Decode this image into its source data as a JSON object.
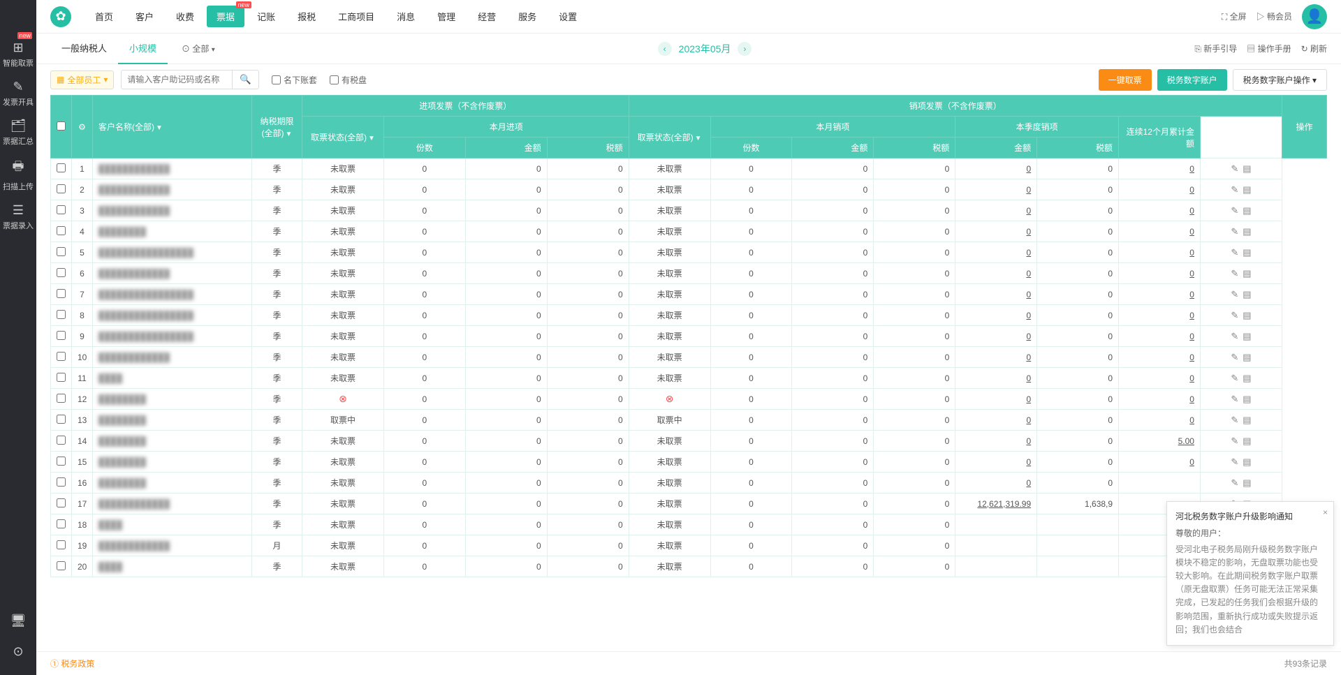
{
  "sidebar": {
    "items": [
      {
        "label": "智能取票",
        "icon": "⊞",
        "new": true
      },
      {
        "label": "发票开具",
        "icon": "✎"
      },
      {
        "label": "票据汇总",
        "icon": "🗂"
      },
      {
        "label": "扫描上传",
        "icon": "🖶"
      },
      {
        "label": "票据录入",
        "icon": "☰"
      }
    ],
    "bottom_icons": [
      "🖥",
      "⊙"
    ]
  },
  "topnav": {
    "items": [
      "首页",
      "客户",
      "收费",
      "票据",
      "记账",
      "报税",
      "工商项目",
      "消息",
      "管理",
      "经营",
      "服务",
      "设置"
    ],
    "active_index": 3,
    "new_index": 3
  },
  "topbar_right": {
    "fullscreen": "⛶ 全屏",
    "member": "▷ 畅会员"
  },
  "subhead": {
    "tabs": [
      "一般纳税人",
      "小规模"
    ],
    "active_tab": 1,
    "scope": "⊙ 全部",
    "month": "2023年05月",
    "right": [
      "⎘ 新手引导",
      "▤ 操作手册",
      "↻ 刷新"
    ]
  },
  "toolbar": {
    "emp_select": "全部员工",
    "search_placeholder": "请输入客户助记码或名称",
    "chk1": "名下账套",
    "chk2": "有税盘",
    "btn_collect": "一键取票",
    "btn_digital": "税务数字账户",
    "btn_ops": "税务数字账户操作"
  },
  "table": {
    "group_headers": {
      "income": "进项发票（不含作废票）",
      "sales": "销项发票（不含作废票）"
    },
    "headers": {
      "check": "",
      "gear": "⚙",
      "name": "客户名称(全部)",
      "period": "纳税期限(全部)",
      "in_status": "取票状态(全部)",
      "month_in": "本月进项",
      "out_status": "取票状态(全部)",
      "month_out": "本月销项",
      "quarter_out": "本季度销项",
      "cum": "连续12个月累计金额",
      "ops": "操作",
      "count": "份数",
      "amount": "金额",
      "tax": "税额"
    },
    "rows": [
      {
        "idx": 1,
        "name": "████████████",
        "period": "季",
        "in_status": "未取票",
        "in_count": 0,
        "in_amt": "0",
        "in_tax": "0",
        "out_status": "未取票",
        "out_count": 0,
        "out_amt": "0",
        "out_tax": "0",
        "q_amt": "0",
        "q_tax": "0",
        "cum": "0"
      },
      {
        "idx": 2,
        "name": "████████████",
        "period": "季",
        "in_status": "未取票",
        "in_count": 0,
        "in_amt": "0",
        "in_tax": "0",
        "out_status": "未取票",
        "out_count": 0,
        "out_amt": "0",
        "out_tax": "0",
        "q_amt": "0",
        "q_tax": "0",
        "cum": "0"
      },
      {
        "idx": 3,
        "name": "████████████",
        "period": "季",
        "in_status": "未取票",
        "in_count": 0,
        "in_amt": "0",
        "in_tax": "0",
        "out_status": "未取票",
        "out_count": 0,
        "out_amt": "0",
        "out_tax": "0",
        "q_amt": "0",
        "q_tax": "0",
        "cum": "0"
      },
      {
        "idx": 4,
        "name": "████████",
        "period": "季",
        "in_status": "未取票",
        "in_count": 0,
        "in_amt": "0",
        "in_tax": "0",
        "out_status": "未取票",
        "out_count": 0,
        "out_amt": "0",
        "out_tax": "0",
        "q_amt": "0",
        "q_tax": "0",
        "cum": "0"
      },
      {
        "idx": 5,
        "name": "████████████████",
        "period": "季",
        "in_status": "未取票",
        "in_count": 0,
        "in_amt": "0",
        "in_tax": "0",
        "out_status": "未取票",
        "out_count": 0,
        "out_amt": "0",
        "out_tax": "0",
        "q_amt": "0",
        "q_tax": "0",
        "cum": "0"
      },
      {
        "idx": 6,
        "name": "████████████",
        "period": "季",
        "in_status": "未取票",
        "in_count": 0,
        "in_amt": "0",
        "in_tax": "0",
        "out_status": "未取票",
        "out_count": 0,
        "out_amt": "0",
        "out_tax": "0",
        "q_amt": "0",
        "q_tax": "0",
        "cum": "0"
      },
      {
        "idx": 7,
        "name": "████████████████",
        "period": "季",
        "in_status": "未取票",
        "in_count": 0,
        "in_amt": "0",
        "in_tax": "0",
        "out_status": "未取票",
        "out_count": 0,
        "out_amt": "0",
        "out_tax": "0",
        "q_amt": "0",
        "q_tax": "0",
        "cum": "0"
      },
      {
        "idx": 8,
        "name": "████████████████",
        "period": "季",
        "in_status": "未取票",
        "in_count": 0,
        "in_amt": "0",
        "in_tax": "0",
        "out_status": "未取票",
        "out_count": 0,
        "out_amt": "0",
        "out_tax": "0",
        "q_amt": "0",
        "q_tax": "0",
        "cum": "0"
      },
      {
        "idx": 9,
        "name": "████████████████",
        "period": "季",
        "in_status": "未取票",
        "in_count": 0,
        "in_amt": "0",
        "in_tax": "0",
        "out_status": "未取票",
        "out_count": 0,
        "out_amt": "0",
        "out_tax": "0",
        "q_amt": "0",
        "q_tax": "0",
        "cum": "0"
      },
      {
        "idx": 10,
        "name": "████████████",
        "period": "季",
        "in_status": "未取票",
        "in_count": 0,
        "in_amt": "0",
        "in_tax": "0",
        "out_status": "未取票",
        "out_count": 0,
        "out_amt": "0",
        "out_tax": "0",
        "q_amt": "0",
        "q_tax": "0",
        "cum": "0"
      },
      {
        "idx": 11,
        "name": "████",
        "period": "季",
        "in_status": "未取票",
        "in_count": 0,
        "in_amt": "0",
        "in_tax": "0",
        "out_status": "未取票",
        "out_count": 0,
        "out_amt": "0",
        "out_tax": "0",
        "q_amt": "0",
        "q_tax": "0",
        "cum": "0"
      },
      {
        "idx": 12,
        "name": "████████",
        "period": "季",
        "in_status": "ERROR",
        "in_count": 0,
        "in_amt": "0",
        "in_tax": "0",
        "out_status": "ERROR",
        "out_count": 0,
        "out_amt": "0",
        "out_tax": "0",
        "q_amt": "0",
        "q_tax": "0",
        "cum": "0"
      },
      {
        "idx": 13,
        "name": "████████",
        "period": "季",
        "in_status": "取票中",
        "in_count": 0,
        "in_amt": "0",
        "in_tax": "0",
        "out_status": "取票中",
        "out_count": 0,
        "out_amt": "0",
        "out_tax": "0",
        "q_amt": "0",
        "q_tax": "0",
        "cum": "0"
      },
      {
        "idx": 14,
        "name": "████████",
        "period": "季",
        "in_status": "未取票",
        "in_count": 0,
        "in_amt": "0",
        "in_tax": "0",
        "out_status": "未取票",
        "out_count": 0,
        "out_amt": "0",
        "out_tax": "0",
        "q_amt": "0",
        "q_tax": "0",
        "cum": "5.00"
      },
      {
        "idx": 15,
        "name": "████████",
        "period": "季",
        "in_status": "未取票",
        "in_count": 0,
        "in_amt": "0",
        "in_tax": "0",
        "out_status": "未取票",
        "out_count": 0,
        "out_amt": "0",
        "out_tax": "0",
        "q_amt": "0",
        "q_tax": "0",
        "cum": "0"
      },
      {
        "idx": 16,
        "name": "████████",
        "period": "季",
        "in_status": "未取票",
        "in_count": 0,
        "in_amt": "0",
        "in_tax": "0",
        "out_status": "未取票",
        "out_count": 0,
        "out_amt": "0",
        "out_tax": "0",
        "q_amt": "0",
        "q_tax": "0",
        "cum": ""
      },
      {
        "idx": 17,
        "name": "████████████",
        "period": "季",
        "in_status": "未取票",
        "in_count": 0,
        "in_amt": "0",
        "in_tax": "0",
        "out_status": "未取票",
        "out_count": 0,
        "out_amt": "0",
        "out_tax": "0",
        "q_amt": "12,621,319.99",
        "q_tax": "1,638,9",
        "cum": ""
      },
      {
        "idx": 18,
        "name": "████",
        "period": "季",
        "in_status": "未取票",
        "in_count": 0,
        "in_amt": "0",
        "in_tax": "0",
        "out_status": "未取票",
        "out_count": 0,
        "out_amt": "0",
        "out_tax": "0",
        "q_amt": "",
        "q_tax": "",
        "cum": ""
      },
      {
        "idx": 19,
        "name": "████████████",
        "period": "月",
        "in_status": "未取票",
        "in_count": 0,
        "in_amt": "0",
        "in_tax": "0",
        "out_status": "未取票",
        "out_count": 0,
        "out_amt": "0",
        "out_tax": "0",
        "q_amt": "",
        "q_tax": "",
        "cum": ""
      },
      {
        "idx": 20,
        "name": "████",
        "period": "季",
        "in_status": "未取票",
        "in_count": 0,
        "in_amt": "0",
        "in_tax": "0",
        "out_status": "未取票",
        "out_count": 0,
        "out_amt": "0",
        "out_tax": "0",
        "q_amt": "",
        "q_tax": "",
        "cum": ""
      }
    ]
  },
  "footer": {
    "left": "① 税务政策",
    "right": "共93条记录"
  },
  "popup": {
    "title": "河北税务数字账户升级影响通知",
    "sub": "尊敬的用户：",
    "body": "受河北电子税务局刚升级税务数字账户模块不稳定的影响，无盘取票功能也受较大影响。在此期间税务数字账户取票（原无盘取票）任务可能无法正常采集完成，已发起的任务我们会根据升级的影响范围，重新执行成功或失败提示返回；我们也会结合"
  },
  "colors": {
    "primary": "#26bfa5",
    "header_bg": "#4ecbb5",
    "orange": "#fa8c16",
    "error": "#ff4d4f"
  }
}
